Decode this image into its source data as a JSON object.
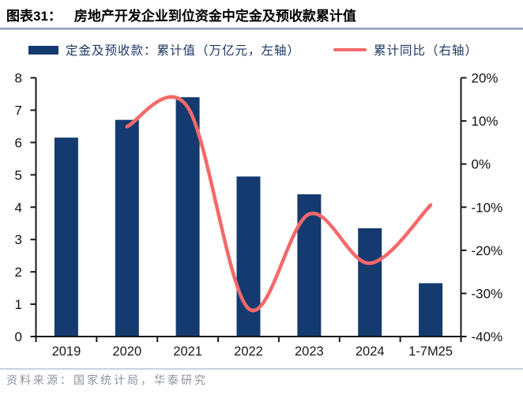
{
  "header": {
    "title_prefix": "图表31：",
    "title": "房地产开发企业到位资金中定金及预收款累计值"
  },
  "legend": {
    "bar_label": "定金及预收款：累计值（万亿元，左轴）",
    "line_label": "累计同比（右轴）"
  },
  "chart_data": {
    "type": "combo-bar-line",
    "categories": [
      "2019",
      "2020",
      "2021",
      "2022",
      "2023",
      "2024",
      "1-7M25"
    ],
    "series": [
      {
        "name": "定金及预收款：累计值（万亿元，左轴）",
        "type": "bar",
        "axis": "left",
        "values": [
          6.15,
          6.7,
          7.4,
          4.95,
          4.4,
          3.35,
          1.65
        ]
      },
      {
        "name": "累计同比（右轴）",
        "type": "line",
        "axis": "right",
        "values": [
          null,
          8.7,
          13.2,
          -33.5,
          -11.6,
          -23,
          -9.5
        ]
      }
    ],
    "left_axis": {
      "min": 0,
      "max": 8,
      "ticks": [
        8,
        7,
        6,
        5,
        4,
        3,
        2,
        1,
        0
      ]
    },
    "right_axis": {
      "min": -40,
      "max": 20,
      "ticks": [
        20,
        10,
        0,
        -10,
        -20,
        -30,
        -40
      ],
      "tick_labels": [
        "20%",
        "10%",
        "0%",
        "-10%",
        "-20%",
        "-30%",
        "-40%"
      ]
    },
    "grid": false,
    "legend_position": "top-left"
  },
  "footer": {
    "source": "资料来源：国家统计局，华泰研究"
  },
  "colors": {
    "bar": "#143a70",
    "line": "#f4696a",
    "legend_text": "#1f3864",
    "axis": "#1a1a1a",
    "tick_label": "#111111",
    "category_label": "#1a1a1a"
  }
}
